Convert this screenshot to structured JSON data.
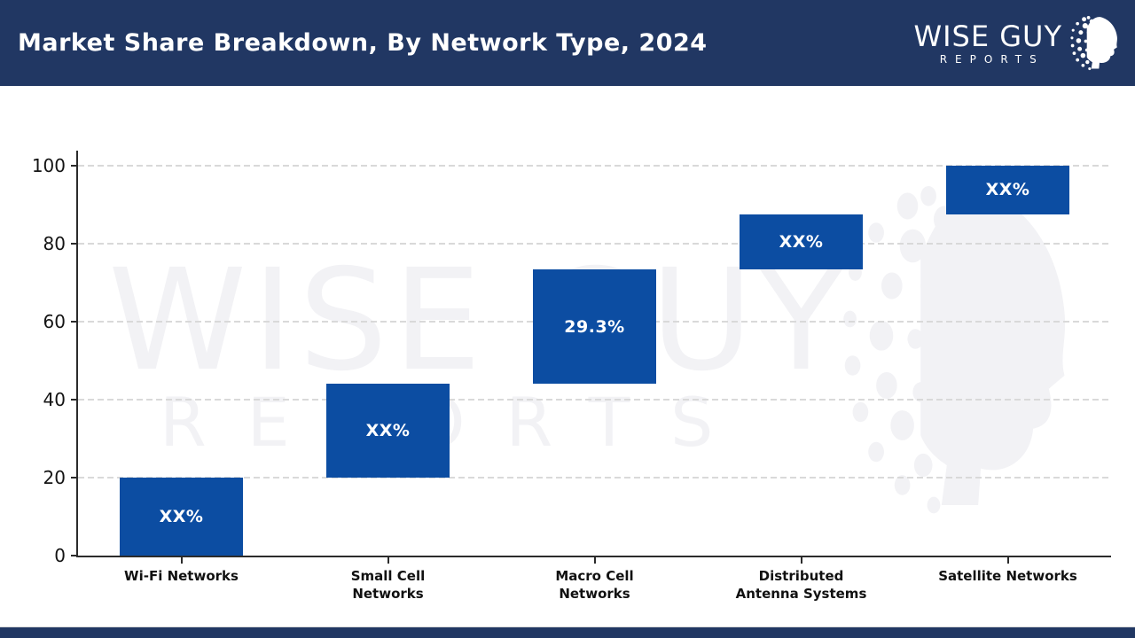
{
  "header": {
    "title": "Market Share Breakdown, By Network Type, 2024",
    "logo_line1": "WISE GUY",
    "logo_line2": "REPORTS"
  },
  "watermark": {
    "line1": "WISE GUY",
    "line2": "REPORTS"
  },
  "colors": {
    "header_bg": "#213763",
    "bar": "#0c4da2",
    "grid": "#d9d9d9",
    "axis": "#2b2b2b",
    "watermark": "#f2f2f5",
    "title_text": "#ffffff"
  },
  "chart_data": {
    "type": "bar",
    "subtype": "waterfall",
    "title": "Market Share Breakdown, By Network Type, 2024",
    "categories": [
      "Wi-Fi Networks",
      "Small Cell Networks",
      "Macro Cell Networks",
      "Distributed Antenna Systems",
      "Satellite Networks"
    ],
    "category_lines": [
      [
        "Wi-Fi Networks"
      ],
      [
        "Small Cell",
        "Networks"
      ],
      [
        "Macro Cell",
        "Networks"
      ],
      [
        "Distributed",
        "Antenna Systems"
      ],
      [
        "Satellite Networks"
      ]
    ],
    "segments": [
      {
        "category": "Wi-Fi Networks",
        "start": 0,
        "end": 20,
        "label": "XX%"
      },
      {
        "category": "Small Cell Networks",
        "start": 20,
        "end": 44,
        "label": "XX%"
      },
      {
        "category": "Macro Cell Networks",
        "start": 44,
        "end": 73.3,
        "label": "29.3%"
      },
      {
        "category": "Distributed Antenna Systems",
        "start": 73.3,
        "end": 87.6,
        "label": "XX%"
      },
      {
        "category": "Satellite Networks",
        "start": 87.6,
        "end": 100,
        "label": "XX%"
      }
    ],
    "y_ticks": [
      0,
      20,
      40,
      60,
      80,
      100
    ],
    "ylim": [
      0,
      104
    ],
    "xlabel": "",
    "ylabel": "",
    "legend": "none",
    "grid": "horizontal-dashed",
    "bar_value_labels_inside": true
  }
}
